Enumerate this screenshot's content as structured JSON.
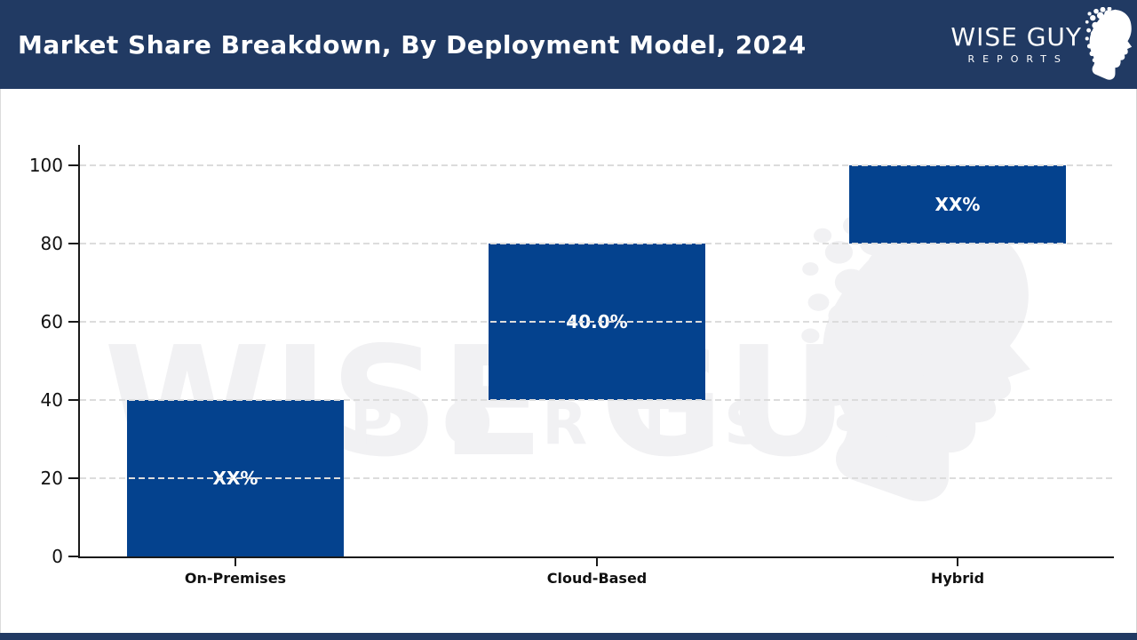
{
  "header": {
    "title": "Market Share Breakdown, By Deployment Model, 2024",
    "brand": {
      "name": "WISE GUY",
      "sub": "REPORTS",
      "face_icon": "dot-face-profile-icon",
      "navy": "#213A63"
    }
  },
  "watermark": {
    "line1": "WISE GUY",
    "line2": "REPORTS"
  },
  "chart_data": {
    "type": "bar",
    "subtype": "floating-segment bars (waterfall-style share breakdown)",
    "title": "Market Share Breakdown, By Deployment Model, 2024",
    "categories": [
      "On-Premises",
      "Cloud-Based",
      "Hybrid"
    ],
    "series": [
      {
        "name": "Market share segment",
        "ranges": [
          [
            0,
            40
          ],
          [
            40,
            80
          ],
          [
            80,
            100
          ]
        ],
        "values": [
          40,
          40,
          20
        ],
        "labels": [
          "XX%",
          "40.0%",
          "XX%"
        ]
      }
    ],
    "ylim": [
      0,
      100
    ],
    "yticks": [
      0,
      20,
      40,
      60,
      80,
      100
    ],
    "xlabel": "",
    "ylabel": "",
    "grid": "horizontal dashed",
    "legend": "none",
    "colors": {
      "bar": "#04428E",
      "bar_label": "#FFFFFF",
      "grid": "#DCDCDC",
      "axis": "#1A1A1A",
      "tick_label": "#111111",
      "header_navy": "#213A63",
      "watermark": "#F1F1F3"
    }
  }
}
